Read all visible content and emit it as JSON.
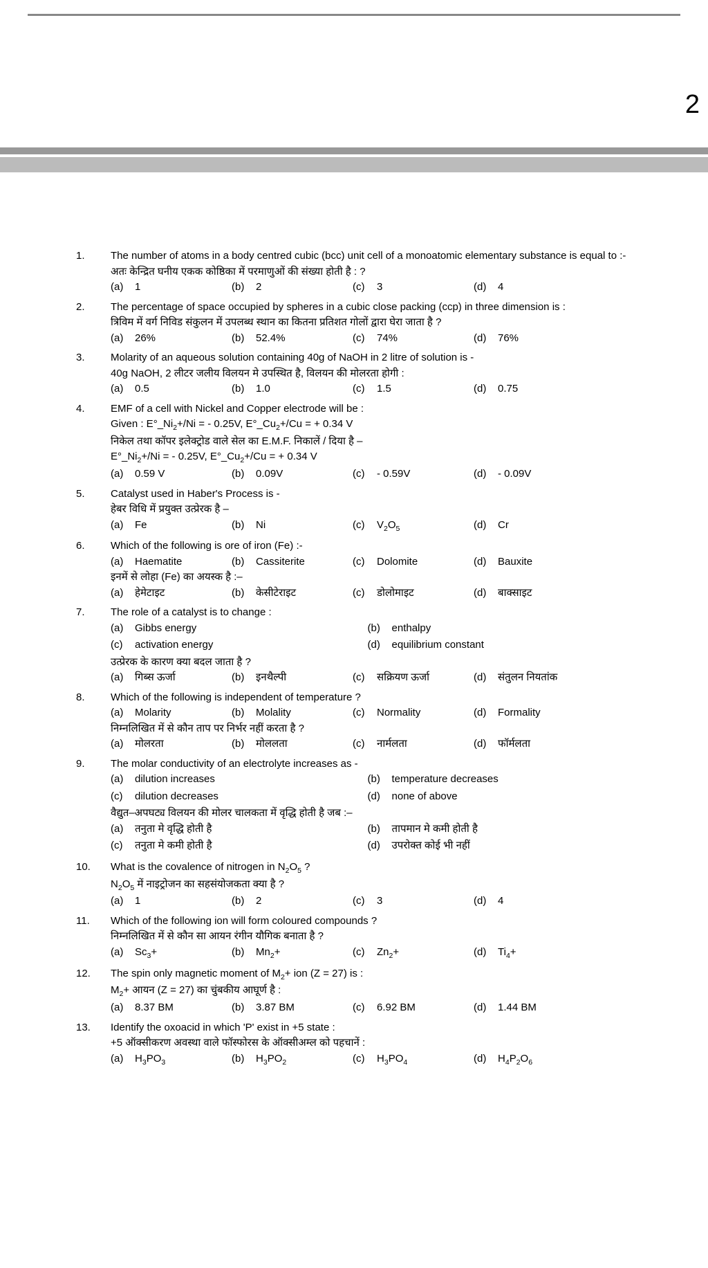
{
  "page_number": "2",
  "questions": [
    {
      "n": "1.",
      "text_en": "The number of atoms in a body centred cubic (bcc) unit cell of a monoatomic elementary substance is equal to :-",
      "text_hi": "अतः केन्द्रित घनीय एकक कोष्ठिका में परमाणुओं की संख्या होती है : ?",
      "opts": [
        [
          "(a)",
          "1"
        ],
        [
          "(b)",
          "2"
        ],
        [
          "(c)",
          "3"
        ],
        [
          "(d)",
          "4"
        ]
      ]
    },
    {
      "n": "2.",
      "text_en": "The percentage of space occupied by spheres in a cubic close packing (ccp) in three dimension is :",
      "text_hi": "त्रिविम में वर्ग निविड संकुलन में उपलब्ध स्थान का कितना प्रतिशत गोलों द्वारा घेरा जाता है ?",
      "opts": [
        [
          "(a)",
          "26%"
        ],
        [
          "(b)",
          "52.4%"
        ],
        [
          "(c)",
          "74%"
        ],
        [
          "(d)",
          "76%"
        ]
      ]
    },
    {
      "n": "3.",
      "text_en": "Molarity of an aqueous solution containing 40g of NaOH in 2 litre of solution is -",
      "text_hi": "40g NaOH, 2 लीटर जलीय विलयन मे उपस्थित है, विलयन की मोलरता होगी :",
      "opts": [
        [
          "(a)",
          "0.5"
        ],
        [
          "(b)",
          "1.0"
        ],
        [
          "(c)",
          "1.5"
        ],
        [
          "(d)",
          "0.75"
        ]
      ]
    },
    {
      "n": "4.",
      "text_en": "EMF of a cell with Nickel and Copper electrode will be :",
      "given_en": "Given : E°_Ni2+/Ni = - 0.25V,        E°_Cu2+/Cu  = + 0.34 V",
      "text_hi": "निकेल तथा कॉपर इलेक्ट्रोड वाले सेल का E.M.F. निकालें / दिया है –",
      "given_hi": "E°_Ni2+/Ni = - 0.25V,        E°_Cu2+/Cu        = + 0.34 V",
      "opts": [
        [
          "(a)",
          "0.59 V"
        ],
        [
          "(b)",
          "0.09V"
        ],
        [
          "(c)",
          "- 0.59V"
        ],
        [
          "(d)",
          "- 0.09V"
        ]
      ]
    },
    {
      "n": "5.",
      "text_en": "Catalyst used in Haber's Process is -",
      "text_hi": "हेबर विधि में प्रयुक्त उत्प्रेरक है –",
      "opts": [
        [
          "(a)",
          "Fe"
        ],
        [
          "(b)",
          "Ni"
        ],
        [
          "(c)",
          "V2O5"
        ],
        [
          "(d)",
          "Cr"
        ]
      ]
    },
    {
      "n": "6.",
      "text_en": "Which of the following is ore of iron (Fe) :-",
      "opts_en": [
        [
          "(a)",
          "Haematite"
        ],
        [
          "(b)",
          "Cassiterite"
        ],
        [
          "(c)",
          "Dolomite"
        ],
        [
          "(d)",
          "Bauxite"
        ]
      ],
      "text_hi": "इनमें से लोहा (Fe) का अयस्क है :–",
      "opts_hi": [
        [
          "(a)",
          "हेमेटाइट"
        ],
        [
          "(b)",
          "केसीटेराइट"
        ],
        [
          "(c)",
          "डोलोमाइट"
        ],
        [
          "(d)",
          "बाक्साइट"
        ]
      ]
    },
    {
      "n": "7.",
      "text_en": "The role of a catalyst is to change :",
      "opts2_en": [
        [
          "(a)",
          "Gibbs energy"
        ],
        [
          "(b)",
          "enthalpy"
        ],
        [
          "(c)",
          "activation energy"
        ],
        [
          "(d)",
          "equilibrium constant"
        ]
      ],
      "text_hi": "उत्प्रेरक के कारण क्या बदल जाता है ?",
      "opts_hi": [
        [
          "(a)",
          "गिब्स ऊर्जा"
        ],
        [
          "(b)",
          "इनथैल्पी"
        ],
        [
          "(c)",
          "सक्रियण ऊर्जा"
        ],
        [
          "(d)",
          "संतुलन नियतांक"
        ]
      ]
    },
    {
      "n": "8.",
      "text_en": "Which of the following is independent of temperature ?",
      "opts_en": [
        [
          "(a)",
          "Molarity"
        ],
        [
          "(b)",
          "Molality"
        ],
        [
          "(c)",
          "Normality"
        ],
        [
          "(d)",
          "Formality"
        ]
      ],
      "text_hi": "निम्नलिखित में से कौन ताप पर निर्भर नहीं करता है ?",
      "opts_hi": [
        [
          "(a)",
          "मोलरता"
        ],
        [
          "(b)",
          "मोललता"
        ],
        [
          "(c)",
          "नार्मलता"
        ],
        [
          "(d)",
          "फॉर्मलता"
        ]
      ]
    },
    {
      "n": "9.",
      "text_en": "The molar conductivity of an electrolyte increases as -",
      "opts2_en": [
        [
          "(a)",
          "dilution increases"
        ],
        [
          "(b)",
          "temperature decreases"
        ],
        [
          "(c)",
          "dilution decreases"
        ],
        [
          "(d)",
          "none of above"
        ]
      ],
      "text_hi": "वैद्युत–अपघट्य विलयन की मोलर चालकता में वृद्धि होती है जब :–",
      "opts2_hi": [
        [
          "(a)",
          "तनुता मे वृद्धि होती है"
        ],
        [
          "(b)",
          "तापमान मे कमी होती है"
        ],
        [
          "(c)",
          "तनुता मे कमी होती है"
        ],
        [
          "(d)",
          "उपरोक्त कोई भी नहीं"
        ]
      ]
    },
    {
      "n": "10.",
      "text_en": "What is the covalence of nitrogen in N2O5 ?",
      "text_hi": "N2O5 में नाइट्रोजन का सहसंयोजकता क्या है ?",
      "opts": [
        [
          "(a)",
          "1"
        ],
        [
          "(b)",
          "2"
        ],
        [
          "(c)",
          "3"
        ],
        [
          "(d)",
          "4"
        ]
      ]
    },
    {
      "n": "11.",
      "text_en": "Which of the following ion will form coloured compounds ?",
      "text_hi": "निम्नलिखित में से कौन सा आयन रंगीन यौगिक बनाता है ?",
      "opts": [
        [
          "(a)",
          "Sc3+"
        ],
        [
          "(b)",
          "Mn2+"
        ],
        [
          "(c)",
          "Zn2+"
        ],
        [
          "(d)",
          "Ti4+"
        ]
      ]
    },
    {
      "n": "12.",
      "text_en": "The spin only magnetic moment of M2+ ion (Z = 27) is :",
      "text_hi": "M2+ आयन (Z = 27) का चुंबकीय आघूर्ण है :",
      "opts": [
        [
          "(a)",
          "8.37 BM"
        ],
        [
          "(b)",
          "3.87 BM"
        ],
        [
          "(c)",
          "6.92 BM"
        ],
        [
          "(d)",
          "1.44 BM"
        ]
      ]
    },
    {
      "n": "13.",
      "text_en": "Identify the oxoacid in which 'P' exist in +5 state :",
      "text_hi": "+5 ऑक्सीकरण अवस्था वाले फॉस्फोरस के ऑक्सीअम्ल को पहचानें :",
      "opts": [
        [
          "(a)",
          "H3PO3"
        ],
        [
          "(b)",
          "H3PO2"
        ],
        [
          "(c)",
          "H3PO4"
        ],
        [
          "(d)",
          "H4P2O6"
        ]
      ]
    }
  ]
}
